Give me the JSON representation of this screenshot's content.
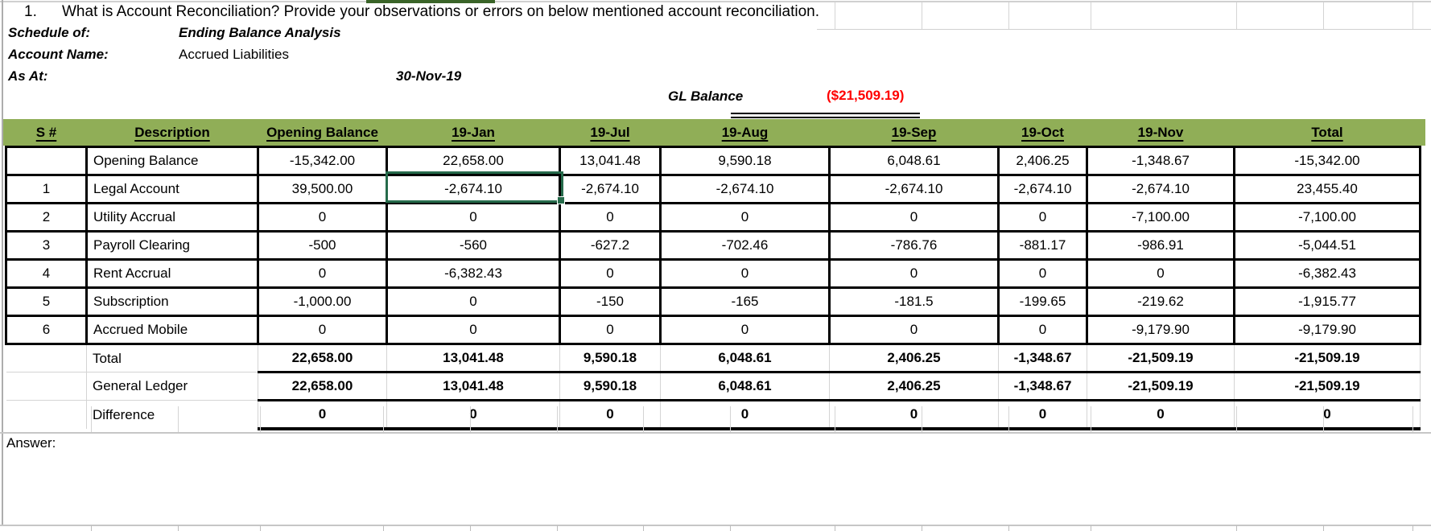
{
  "question": {
    "number": "1.",
    "text": "What is Account Reconciliation? Provide your observations or errors on below mentioned account reconciliation."
  },
  "meta": {
    "schedule_label": "Schedule of:",
    "schedule_value": "Ending Balance Analysis",
    "account_label": "Account Name:",
    "account_value": "Accrued Liabilities",
    "asat_label": "As At:",
    "asat_value": "30-Nov-19",
    "gl_label": "GL Balance",
    "gl_value": "($21,509.19)"
  },
  "table": {
    "headers": [
      "S #",
      "Description",
      "Opening Balance",
      "19-Jan",
      "19-Jul",
      "19-Aug",
      "19-Sep",
      "19-Oct",
      "19-Nov",
      "Total"
    ],
    "rows": [
      {
        "sn": "",
        "desc": "Opening Balance",
        "values": [
          "-15,342.00",
          "22,658.00",
          "13,041.48",
          "9,590.18",
          "6,048.61",
          "2,406.25",
          "-1,348.67",
          "-15,342.00"
        ]
      },
      {
        "sn": "1",
        "desc": "Legal Account",
        "values": [
          "39,500.00",
          "-2,674.10",
          "-2,674.10",
          "-2,674.10",
          "-2,674.10",
          "-2,674.10",
          "-2,674.10",
          "23,455.40"
        ]
      },
      {
        "sn": "2",
        "desc": "Utility Accrual",
        "values": [
          "0",
          "0",
          "0",
          "0",
          "0",
          "0",
          "-7,100.00",
          "-7,100.00"
        ]
      },
      {
        "sn": "3",
        "desc": "Payroll Clearing",
        "values": [
          "-500",
          "-560",
          "-627.2",
          "-702.46",
          "-786.76",
          "-881.17",
          "-986.91",
          "-5,044.51"
        ]
      },
      {
        "sn": "4",
        "desc": "Rent Accrual",
        "values": [
          "0",
          "-6,382.43",
          "0",
          "0",
          "0",
          "0",
          "0",
          "-6,382.43"
        ]
      },
      {
        "sn": "5",
        "desc": "Subscription",
        "values": [
          "-1,000.00",
          "0",
          "-150",
          "-165",
          "-181.5",
          "-199.65",
          "-219.62",
          "-1,915.77"
        ]
      },
      {
        "sn": "6",
        "desc": "Accrued Mobile",
        "values": [
          "0",
          "0",
          "0",
          "0",
          "0",
          "0",
          "-9,179.90",
          "-9,179.90"
        ]
      }
    ],
    "summary": [
      {
        "desc": "Total",
        "values": [
          "22,658.00",
          "13,041.48",
          "9,590.18",
          "6,048.61",
          "2,406.25",
          "-1,348.67",
          "-21,509.19",
          "-21,509.19"
        ]
      },
      {
        "desc": "General Ledger",
        "values": [
          "22,658.00",
          "13,041.48",
          "9,590.18",
          "6,048.61",
          "2,406.25",
          "-1,348.67",
          "-21,509.19",
          "-21,509.19"
        ]
      },
      {
        "desc": "Difference",
        "values": [
          "0",
          "0",
          "0",
          "0",
          "0",
          "0",
          "0",
          "0"
        ]
      }
    ],
    "selected_cell": {
      "row": "Legal Account",
      "column": "19-Jan",
      "value": "-2,674.10"
    }
  },
  "answer": {
    "label": "Answer:"
  },
  "colors": {
    "header_green": "#90AE57",
    "selection_green": "#266B4B",
    "gl_red": "#FF0000",
    "gridline_gray": "#D4D4D4"
  }
}
